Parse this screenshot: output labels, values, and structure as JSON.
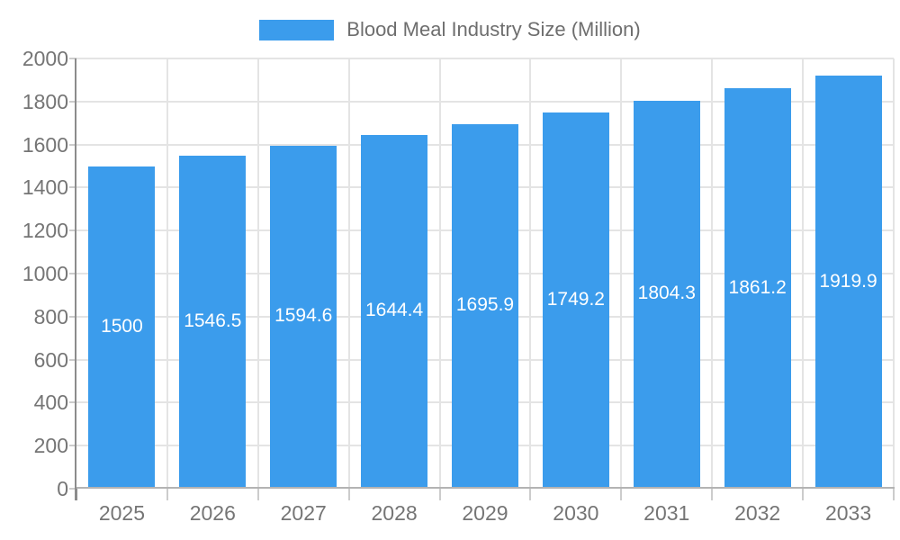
{
  "legend": {
    "label": "Blood Meal Industry Size (Million)"
  },
  "chart_data": {
    "type": "bar",
    "title": "Blood Meal Industry Size (Million)",
    "categories": [
      "2025",
      "2026",
      "2027",
      "2028",
      "2029",
      "2030",
      "2031",
      "2032",
      "2033"
    ],
    "values": [
      1500,
      1546.5,
      1594.6,
      1644.4,
      1695.9,
      1749.2,
      1804.3,
      1861.2,
      1919.9
    ],
    "value_labels": [
      "1500",
      "1546.5",
      "1594.6",
      "1644.4",
      "1695.9",
      "1749.2",
      "1804.3",
      "1861.2",
      "1919.9"
    ],
    "xlabel": "",
    "ylabel": "",
    "ylim": [
      0,
      2000
    ],
    "ytick_step": 200,
    "yticks": [
      0,
      200,
      400,
      600,
      800,
      1000,
      1200,
      1400,
      1600,
      1800,
      2000
    ],
    "grid": true,
    "legend_position": "top",
    "value_label_position": "inside-middle",
    "colors": {
      "bar": "#3B9CEC",
      "value_label": "#ffffff",
      "axis_label": "#757575",
      "title": "#6e6e6e",
      "grid_line": "#e4e4e4",
      "axis_line": "#8c8c8c",
      "bottom_line": "#b3b3b3",
      "tick": "#cccccc",
      "background": "#ffffff"
    }
  }
}
